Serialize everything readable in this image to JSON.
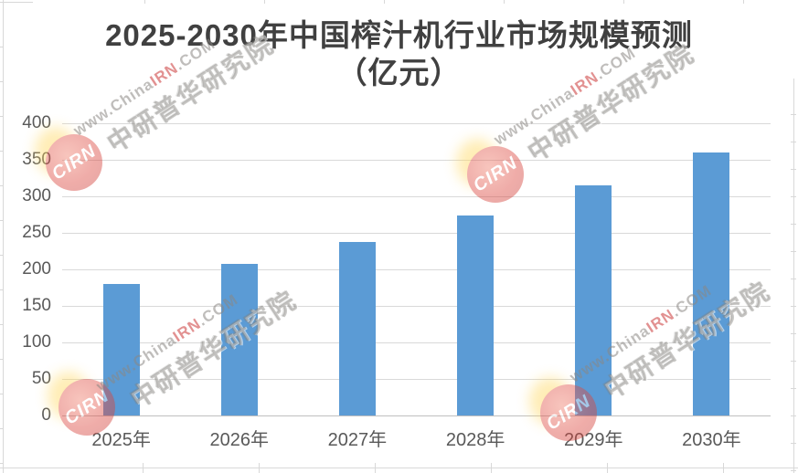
{
  "chart_title": {
    "line1": "2025-2030年中国榨汁机行业市场规模预测",
    "line2": "（亿元）"
  },
  "chart_data": {
    "type": "bar",
    "title": "2025-2030年中国榨汁机行业市场规模预测（亿元）",
    "categories": [
      "2025年",
      "2026年",
      "2027年",
      "2028年",
      "2029年",
      "2030年"
    ],
    "values": [
      180,
      207,
      238,
      274,
      315,
      360
    ],
    "xlabel": "",
    "ylabel": "",
    "ylim": [
      0,
      400
    ],
    "yticks": [
      0,
      50,
      100,
      150,
      200,
      250,
      300,
      350,
      400
    ],
    "grid": true,
    "legend": false
  },
  "colors": {
    "bar": "#5B9BD5",
    "gridline": "#D9D9D9",
    "axis_line": "#C0C0C0",
    "axis_label": "#595959",
    "title": "#404040",
    "watermark_gray": "#8A8784",
    "watermark_red": "#D04E4E",
    "logo_red": "#DD4A42",
    "logo_glow": "#FFD75E"
  },
  "watermark": {
    "line1_prefix": "www.China",
    "line1_highlight": "IRN",
    "line1_suffix": ".COM",
    "line2": "中研普华研究院",
    "logo_text": "CIRN"
  }
}
